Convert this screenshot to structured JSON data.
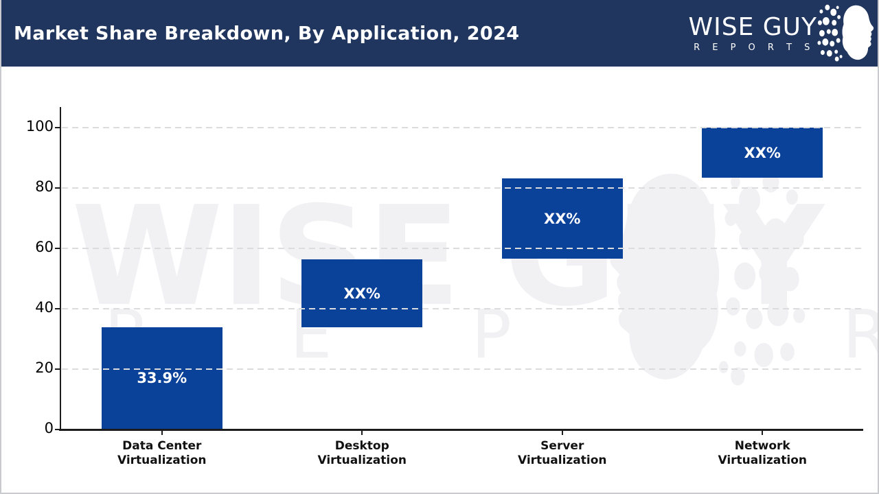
{
  "header": {
    "title": "Market Share Breakdown, By Application, 2024",
    "logo": {
      "line1": "WISE GUY",
      "line2": "R E P O R T S"
    }
  },
  "watermark": {
    "line1": "WISE GUY",
    "line2": "R E P O R T S"
  },
  "colors": {
    "header_bg": "#20365f",
    "bar": "#0a4199",
    "grid": "#dcdcdf",
    "axis": "#1c1c1c",
    "bar_label": "#ffffff",
    "watermark": "#f1f1f4"
  },
  "chart_data": {
    "type": "bar",
    "subtype": "floating-waterfall",
    "title": "Market Share Breakdown, By Application, 2024",
    "categories": [
      "Data Center Virtualization",
      "Desktop Virtualization",
      "Server Virtualization",
      "Network Virtualization"
    ],
    "category_lines": [
      [
        "Data Center",
        "Virtualization"
      ],
      [
        "Desktop",
        "Virtualization"
      ],
      [
        "Server",
        "Virtualization"
      ],
      [
        "Network",
        "Virtualization"
      ]
    ],
    "series": [
      {
        "name": "Market Share %",
        "segments": [
          {
            "start": 0,
            "end": 33.9,
            "label": "33.9%"
          },
          {
            "start": 33.9,
            "end": 56.3,
            "label": "XX%"
          },
          {
            "start": 56.5,
            "end": 83.2,
            "label": "XX%"
          },
          {
            "start": 83.4,
            "end": 100,
            "label": "XX%"
          }
        ]
      }
    ],
    "ylim": [
      0,
      100
    ],
    "yticks": [
      0,
      20,
      40,
      60,
      80,
      100
    ],
    "xlabel": "",
    "ylabel": "",
    "grid": "horizontal-dashed",
    "legend": "none"
  }
}
